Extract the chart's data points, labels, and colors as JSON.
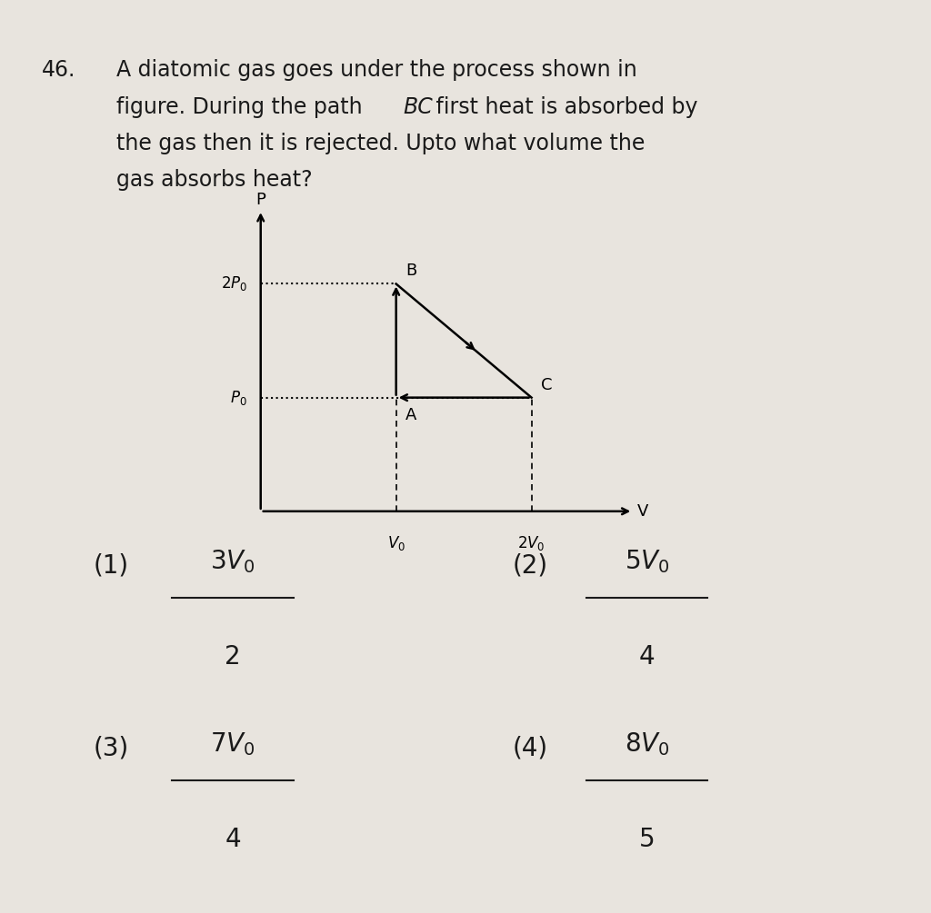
{
  "background_color": "#e8e4de",
  "text_color": "#1a1a1a",
  "question_number": "46.",
  "line1": "A diatomic gas goes under the process shown in",
  "line2a": "figure. During the path ",
  "line2b": "BC",
  "line2c": " first heat is absorbed by",
  "line3": "the gas then it is rejected. Upto what volume the",
  "line4": "gas absorbs heat?",
  "diagram": {
    "A": [
      1.0,
      1.0
    ],
    "B": [
      1.0,
      2.0
    ],
    "C": [
      2.0,
      1.0
    ],
    "x_axis_label": "V",
    "y_axis_label": "P",
    "y0_label": "P_0",
    "y1_label": "2P_0",
    "x0_label": "V_0",
    "x1_label": "2V_0"
  },
  "options": [
    {
      "label": "(1)",
      "numer": "3V_0",
      "denom": "2",
      "col": 0.12,
      "row": 0.72
    },
    {
      "label": "(2)",
      "numer": "5V_0",
      "denom": "4",
      "col": 0.57,
      "row": 0.72
    },
    {
      "label": "(3)",
      "numer": "7V_0",
      "denom": "4",
      "col": 0.12,
      "row": 0.26
    },
    {
      "label": "(4)",
      "numer": "8V_0",
      "denom": "5",
      "col": 0.57,
      "row": 0.26
    }
  ]
}
